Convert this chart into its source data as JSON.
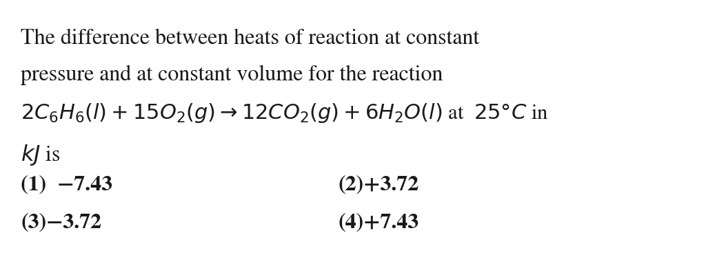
{
  "background_color": "#ffffff",
  "figsize": [
    10.24,
    3.9
  ],
  "dpi": 100,
  "text_color": "#1a1a1a",
  "font_size_main": 23,
  "font_size_eq": 22,
  "font_size_options": 23,
  "line1": "The difference between heats of reaction at constant",
  "line2": "pressure and at constant volume for the reaction",
  "option1": "(1)  −7.43",
  "option2": "(2)+3.72",
  "option3": "(3)−3.72",
  "option4": "(4)+7.43"
}
